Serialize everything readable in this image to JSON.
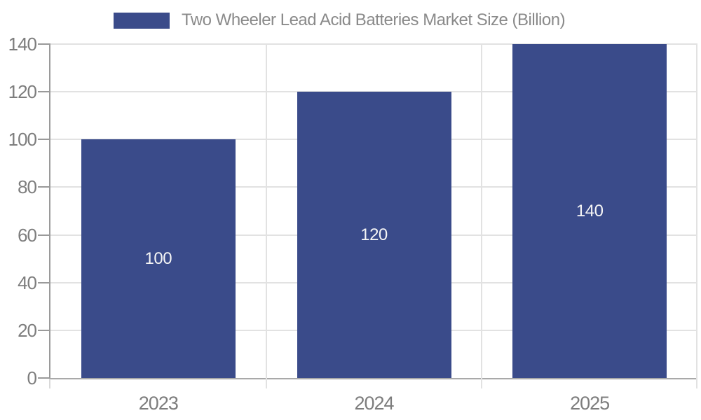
{
  "legend": {
    "label": "Two Wheeler Lead Acid Batteries Market Size (Billion)"
  },
  "chart_data": {
    "type": "bar",
    "categories": [
      "2023",
      "2024",
      "2025"
    ],
    "values": [
      100,
      120,
      140
    ],
    "series_name": "Two Wheeler Lead Acid Batteries Market Size (Billion)",
    "xlabel": "",
    "ylabel": "",
    "ylim": [
      0,
      140
    ],
    "yticks": [
      0,
      20,
      40,
      60,
      80,
      100,
      120,
      140
    ],
    "bar_labels": [
      "100",
      "120",
      "140"
    ],
    "bar_color": "#3a4b8a",
    "bar_label_color": "#f5f5f5",
    "grid": true,
    "legend_position": "top"
  }
}
